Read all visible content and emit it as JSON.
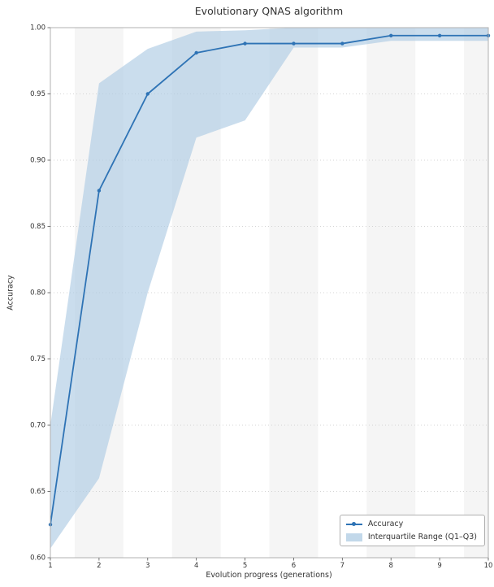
{
  "chart_data": {
    "type": "line",
    "title": "Evolutionary QNAS algorithm",
    "xlabel": "Evolution progress (generations)",
    "ylabel": "Accuracy",
    "xlim": [
      1,
      10
    ],
    "ylim": [
      0.6,
      1.0
    ],
    "x_ticks": [
      1,
      2,
      3,
      4,
      5,
      6,
      7,
      8,
      9,
      10
    ],
    "y_ticks": [
      0.6,
      0.65,
      0.7,
      0.75,
      0.8,
      0.85,
      0.9,
      0.95,
      1.0
    ],
    "x": [
      1,
      2,
      3,
      4,
      5,
      6,
      7,
      8,
      9,
      10
    ],
    "series": [
      {
        "name": "Accuracy",
        "values": [
          0.625,
          0.877,
          0.95,
          0.981,
          0.988,
          0.988,
          0.988,
          0.994,
          0.994,
          0.994
        ]
      }
    ],
    "band": {
      "name": "Interquartile Range (Q1–Q3)",
      "q1": [
        0.607,
        0.66,
        0.8,
        0.917,
        0.93,
        0.985,
        0.985,
        0.99,
        0.99,
        0.99
      ],
      "q3": [
        0.7,
        0.958,
        0.984,
        0.997,
        0.998,
        1.0,
        1.0,
        1.0,
        1.0,
        1.0
      ]
    },
    "legend_position": "lower right",
    "grid": "horizontal-dotted",
    "colors": {
      "line": "#2e73b5",
      "band": "#aecbe3",
      "stripe": "#f2f2f2",
      "grid": "#c8c8c8",
      "spine": "#b0b0b0",
      "text": "#333333"
    }
  }
}
